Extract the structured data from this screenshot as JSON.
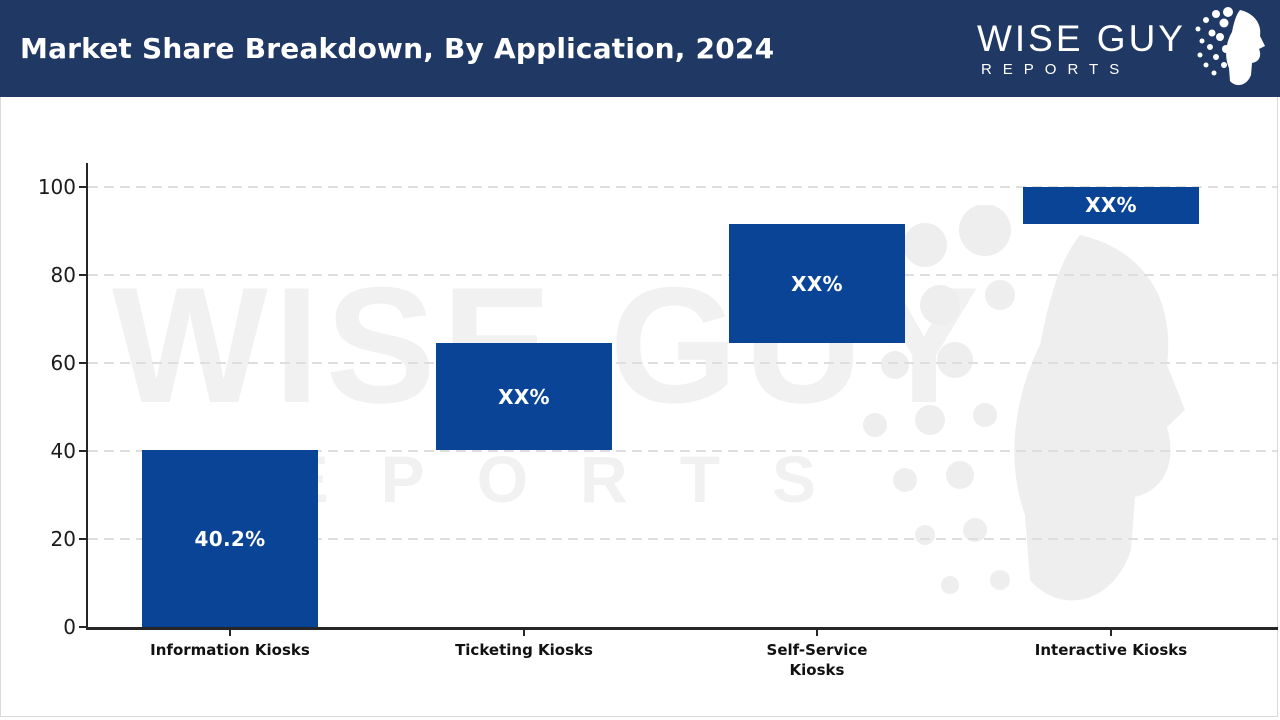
{
  "header": {
    "title": "Market Share Breakdown, By Application, 2024",
    "logo": {
      "line1": "WISE GUY",
      "line2": "REPORTS"
    }
  },
  "watermark": {
    "line1": "WISE GUY",
    "line2": "REPORTS"
  },
  "chart_data": {
    "type": "bar",
    "subtype": "floating stacked breakdown - segments sum to 100%",
    "title": "Market Share Breakdown, By Application, 2024",
    "categories": [
      "Information Kiosks",
      "Ticketing Kiosks",
      "Self-Service Kiosks",
      "Interactive Kiosks"
    ],
    "category_label_lines": [
      [
        "Information Kiosks"
      ],
      [
        "Ticketing Kiosks"
      ],
      [
        "Self-Service",
        "Kiosks"
      ],
      [
        "Interactive Kiosks"
      ]
    ],
    "segments": [
      {
        "category": "Information Kiosks",
        "from": 0,
        "to": 40.2,
        "label": "40.2%"
      },
      {
        "category": "Ticketing Kiosks",
        "from": 40.2,
        "to": 64.5,
        "label": "XX%"
      },
      {
        "category": "Self-Service Kiosks",
        "from": 64.5,
        "to": 91.6,
        "label": "XX%"
      },
      {
        "category": "Interactive Kiosks",
        "from": 91.6,
        "to": 100,
        "label": "XX%"
      }
    ],
    "values": [
      40.2,
      24.3,
      27.1,
      8.4
    ],
    "data_labels": [
      "40.2%",
      "XX%",
      "XX%",
      "XX%"
    ],
    "xlabel": "",
    "ylabel": "",
    "ylim": [
      0,
      100
    ],
    "yticks": [
      0,
      20,
      40,
      60,
      80,
      100
    ],
    "grid": "horizontal dashed",
    "legend": "none",
    "bar_color": "#0a4496",
    "bar_label_color": "#ffffff"
  },
  "colors": {
    "header_bg": "#1f3864",
    "bar": "#0a4496",
    "grid": "#dedede",
    "axis": "#262626",
    "watermark": "#f1f1f1",
    "frame_border": "#dadada",
    "background": "#ffffff"
  }
}
